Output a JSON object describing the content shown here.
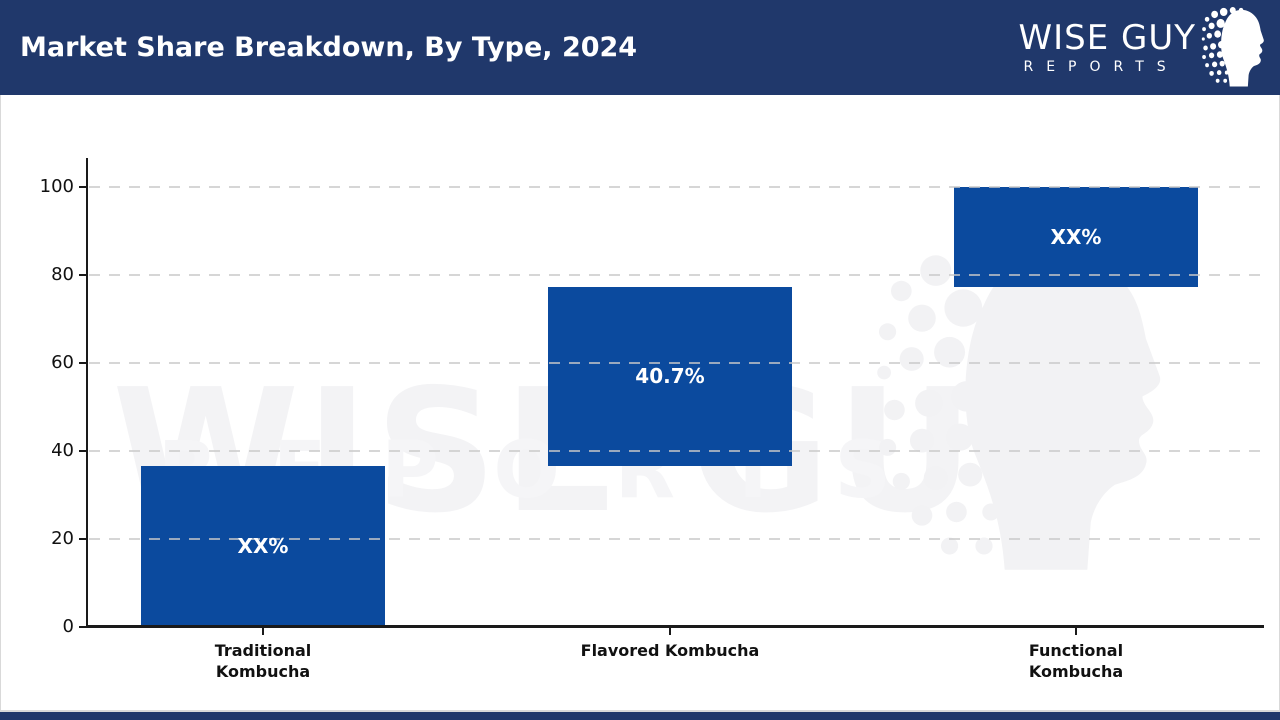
{
  "header": {
    "title": "Market Share Breakdown, By Type, 2024",
    "logo": {
      "name": "WISE GUY",
      "tagline": "REPORTS"
    }
  },
  "watermark": {
    "brand": "WISE GUY",
    "tagline": "REPORTS"
  },
  "chart_data": {
    "type": "bar",
    "subtype": "waterfall",
    "title": "Market Share Breakdown, By Type, 2024",
    "categories": [
      "Traditional Kombucha",
      "Flavored Kombucha",
      "Functional Kombucha"
    ],
    "category_lines": [
      [
        "Traditional",
        "Kombucha"
      ],
      [
        "Flavored Kombucha"
      ],
      [
        "Functional",
        "Kombucha"
      ]
    ],
    "segments": [
      {
        "category": "Traditional Kombucha",
        "label": "XX%",
        "start": 0,
        "end": 36.6
      },
      {
        "category": "Flavored Kombucha",
        "label": "40.7%",
        "start": 36.6,
        "end": 77.3
      },
      {
        "category": "Functional Kombucha",
        "label": "XX%",
        "start": 77.3,
        "end": 100
      }
    ],
    "yticks": [
      0,
      20,
      40,
      60,
      80,
      100
    ],
    "ylim": [
      0,
      100
    ],
    "grid": "horizontal-dashed",
    "legend": "none",
    "bar_color": "#0B4A9E",
    "bar_label_color": "#FFFFFF"
  },
  "colors": {
    "header_bg": "#20386B",
    "footer_bg": "#20386B",
    "axis": "#1A1A1A",
    "grid": "#C9C9C9",
    "watermark": "#F3F3F5",
    "page_border": "#D9D9D9"
  }
}
